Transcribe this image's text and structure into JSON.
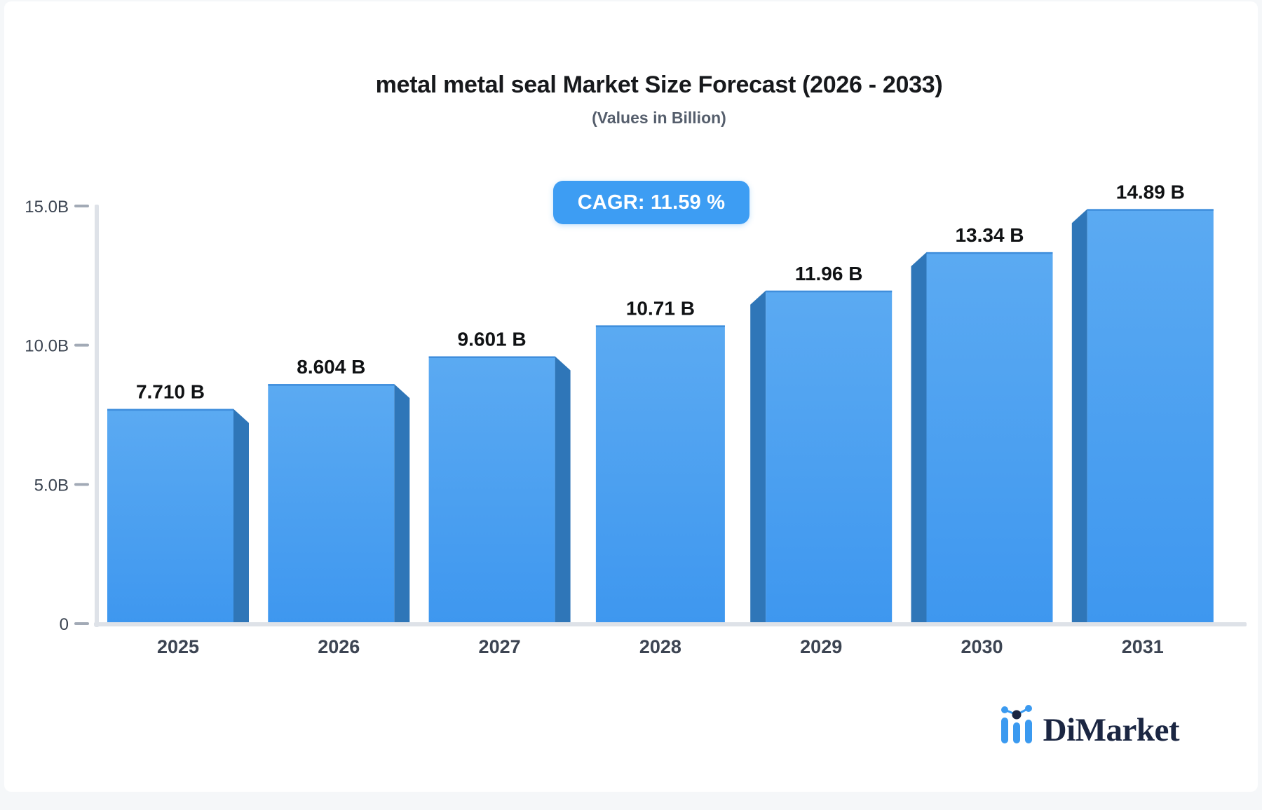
{
  "chart_data": {
    "type": "bar",
    "title": "metal metal seal Market Size Forecast (2026 - 2033)",
    "subtitle": "(Values in Billion)",
    "categories": [
      "2025",
      "2026",
      "2027",
      "2028",
      "2029",
      "2030",
      "2031"
    ],
    "values": [
      7.71,
      8.604,
      9.601,
      10.71,
      11.96,
      13.34,
      14.89
    ],
    "value_labels": [
      "7.710 B",
      "8.604 B",
      "9.601 B",
      "10.71 B",
      "11.96 B",
      "13.34 B",
      "14.89 B"
    ],
    "yticks": [
      {
        "value": 0,
        "label": "0"
      },
      {
        "value": 5,
        "label": "5.0B"
      },
      {
        "value": 10,
        "label": "10.0B"
      },
      {
        "value": 15,
        "label": "15.0B"
      }
    ],
    "ylim": [
      0,
      15
    ],
    "xlabel": "",
    "ylabel": "",
    "grid": false,
    "legend_position": "none",
    "annotations": [
      {
        "name": "cagr-badge",
        "text": "CAGR: 11.59 %"
      }
    ]
  },
  "colors": {
    "page_bg": "#F5F7F9",
    "card_bg": "#FFFFFF",
    "title_text": "#17191C",
    "subtitle_text": "#555E6C",
    "badge_bg": "#3D9DF3",
    "badge_text": "#FFFFFF",
    "bar_face_top": "#5BAAF2",
    "bar_face_bottom": "#3E97EF",
    "bar_side": "#2F76B8",
    "bar_top_edge": "#3F8EDC",
    "axis_line": "#DEE2E8",
    "tick_dash": "#A2AAB6",
    "tick_text": "#3A4350",
    "category_text": "#3C4452",
    "value_text": "#101214",
    "logo_navy": "#1B2642",
    "logo_blue": "#3B9AF0"
  },
  "footer": {
    "brand": "DiMarket"
  }
}
